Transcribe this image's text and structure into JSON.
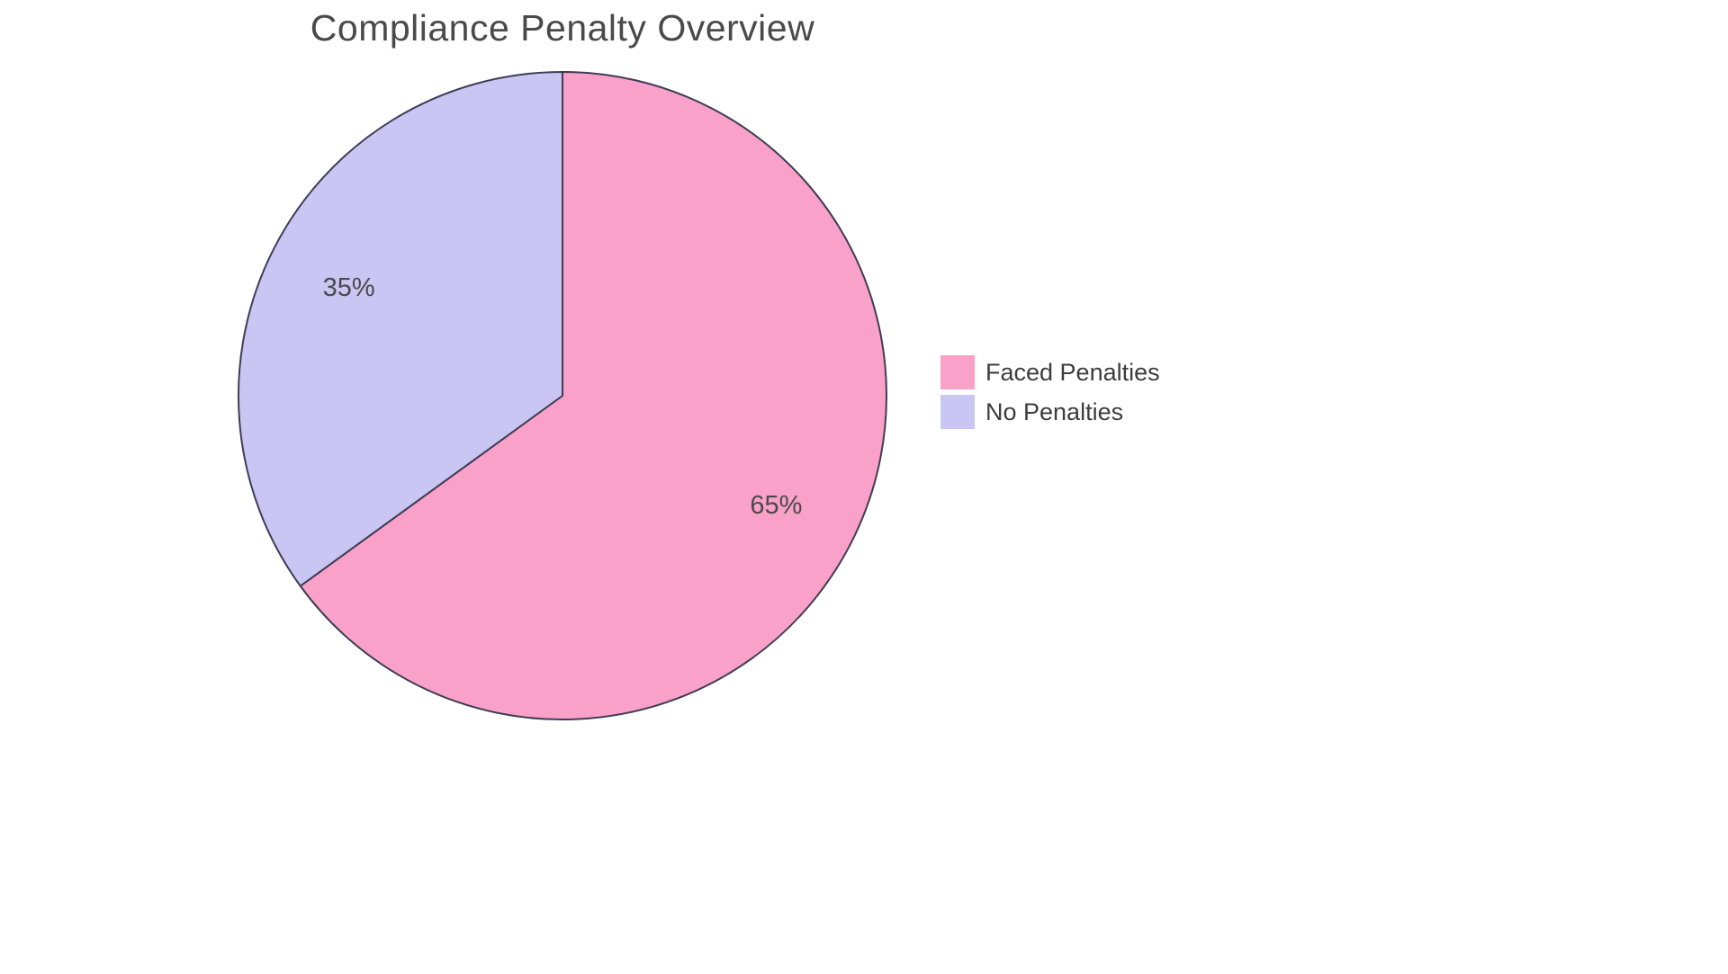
{
  "chart_data": {
    "type": "pie",
    "title": "Compliance Penalty Overview",
    "direction": "clockwise",
    "start_angle_deg": 0,
    "legend_position": "right",
    "stroke_color": "#3f3d56",
    "label_color": "#4a4a4a",
    "slices": [
      {
        "label": "Faced Penalties",
        "value": 65,
        "percent_label": "65%",
        "color": "#F9A1C8"
      },
      {
        "label": "No Penalties",
        "value": 35,
        "percent_label": "35%",
        "color": "#C9C6F3"
      }
    ]
  },
  "legend": {
    "items": [
      {
        "label": "Faced Penalties",
        "color": "#F9A1C8"
      },
      {
        "label": "No Penalties",
        "color": "#C9C6F3"
      }
    ]
  }
}
